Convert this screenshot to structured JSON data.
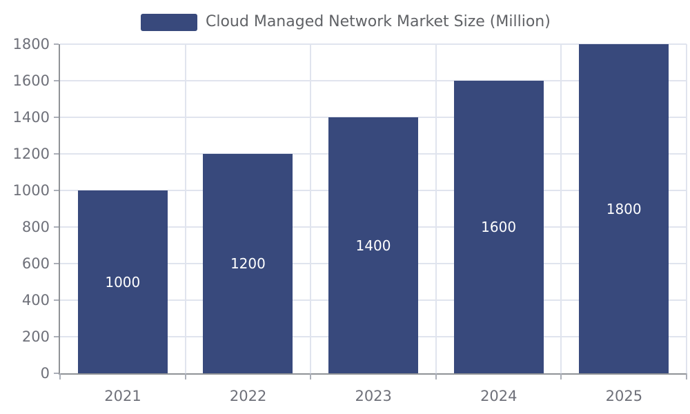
{
  "legend": {
    "label": "Cloud Managed Network Market Size (Million)",
    "swatch_color": "#38497C",
    "text_color": "#606266"
  },
  "chart_data": {
    "type": "bar",
    "title": "Cloud Managed Network Market Size (Million)",
    "series_name": "Cloud Managed Network Market Size (Million)",
    "categories": [
      "2021",
      "2022",
      "2023",
      "2024",
      "2025"
    ],
    "values": [
      1000,
      1200,
      1400,
      1600,
      1800
    ],
    "data_labels": [
      "1000",
      "1200",
      "1400",
      "1600",
      "1800"
    ],
    "xlabel": "",
    "ylabel": "",
    "ylim": [
      0,
      1800
    ],
    "ytick_step": 200,
    "yticks": [
      0,
      200,
      400,
      600,
      800,
      1000,
      1200,
      1400,
      1600,
      1800
    ],
    "grid": true,
    "vertical_gridlines": true,
    "legend_position": "top",
    "colors": {
      "bar": "#38497C",
      "bar_value_label": "#ffffff",
      "axis_text": "#6E7079",
      "gridline": "#E0E4EE",
      "axis_line": "#8F9296",
      "tick": "#ABAFB8",
      "background": "#ffffff"
    }
  }
}
